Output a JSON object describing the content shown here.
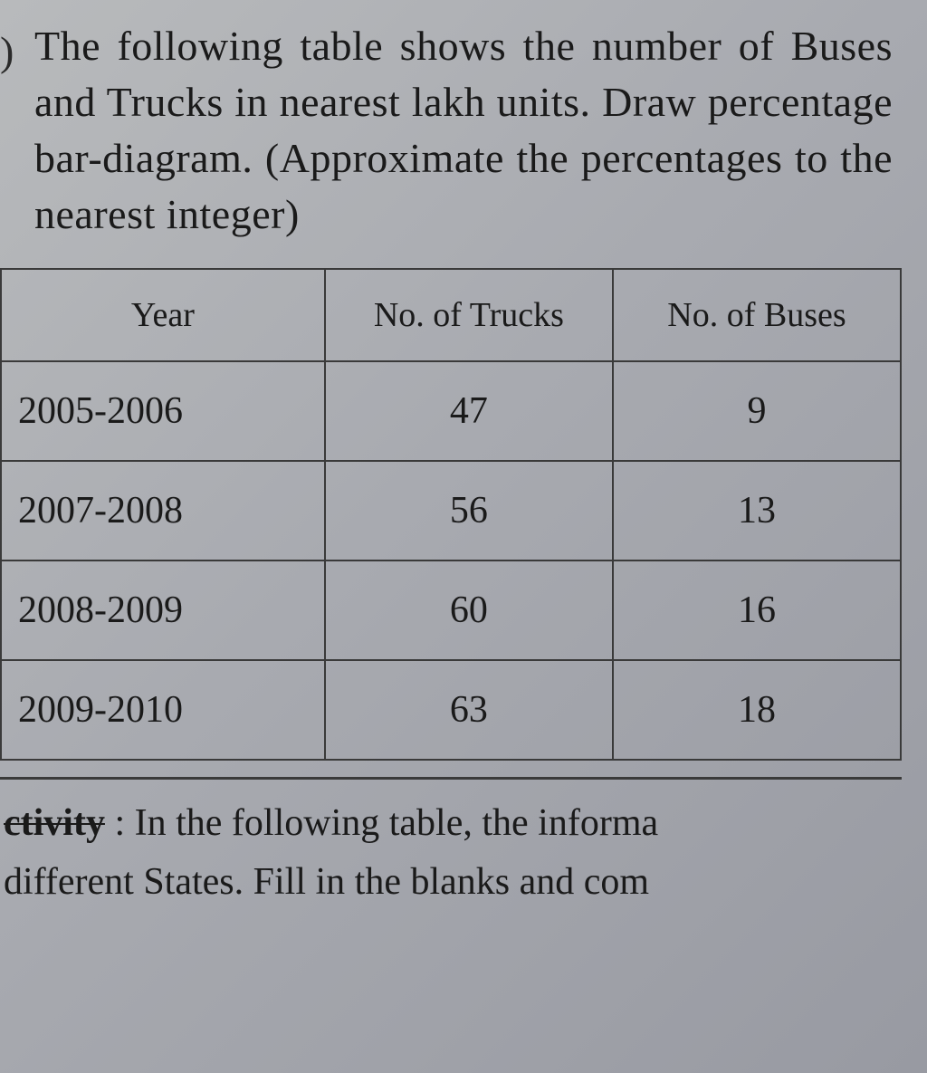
{
  "page": {
    "background_color": "#a8aab0",
    "text_color": "#1a1a1a"
  },
  "question": {
    "marker": ")",
    "text": "The following table shows the number of Buses and Trucks in nearest lakh units. Draw percentage bar-diagram. (Approximate the percentages to the nearest integer)",
    "font_size_pt": 34
  },
  "table": {
    "type": "table",
    "border_color": "#3a3a3a",
    "header_fontsize_pt": 28,
    "cell_fontsize_pt": 31,
    "columns": [
      {
        "key": "year",
        "label": "Year",
        "width_pct": 36,
        "align": "left"
      },
      {
        "key": "trucks",
        "label": "No. of Trucks",
        "width_pct": 32,
        "align": "center"
      },
      {
        "key": "buses",
        "label": "No. of Buses",
        "width_pct": 32,
        "align": "center"
      }
    ],
    "rows": [
      {
        "year": "2005-2006",
        "trucks": "47",
        "buses": "9"
      },
      {
        "year": "2007-2008",
        "trucks": "56",
        "buses": "13"
      },
      {
        "year": "2008-2009",
        "trucks": "60",
        "buses": "16"
      },
      {
        "year": "2009-2010",
        "trucks": "63",
        "buses": "18"
      }
    ]
  },
  "footer": {
    "activity_label": "ctivity",
    "activity_text": " : In the following table, the informa",
    "cutoff_text": "different States. Fill in the blanks and com",
    "font_size_pt": 31
  }
}
